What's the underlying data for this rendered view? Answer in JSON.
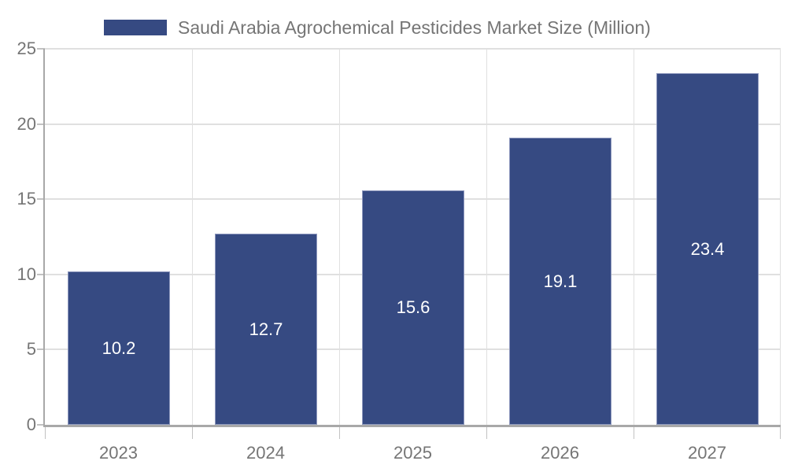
{
  "chart_data": {
    "type": "bar",
    "title": "Saudi Arabia Agrochemical Pesticides Market Size (Million)",
    "series_name": "Saudi Arabia Agrochemical Pesticides Market Size (Million)",
    "categories": [
      "2023",
      "2024",
      "2025",
      "2026",
      "2027"
    ],
    "values": [
      10.2,
      12.7,
      15.6,
      19.1,
      23.4
    ],
    "value_labels": [
      "10.2",
      "12.7",
      "15.6",
      "19.1",
      "23.4"
    ],
    "xlabel": "",
    "ylabel": "",
    "ylim": [
      0,
      25
    ],
    "yticks": [
      0,
      5,
      10,
      15,
      20,
      25
    ],
    "grid": true,
    "legend_position": "top",
    "colors": {
      "bar": "#364a82",
      "bar_edge": "#8f99be",
      "grid": "#e0e0e0",
      "axis": "#a8a8a8",
      "tick": "#c2c2c2",
      "text": "#757575",
      "value_label": "#ffffff",
      "background": "#ffffff"
    }
  }
}
